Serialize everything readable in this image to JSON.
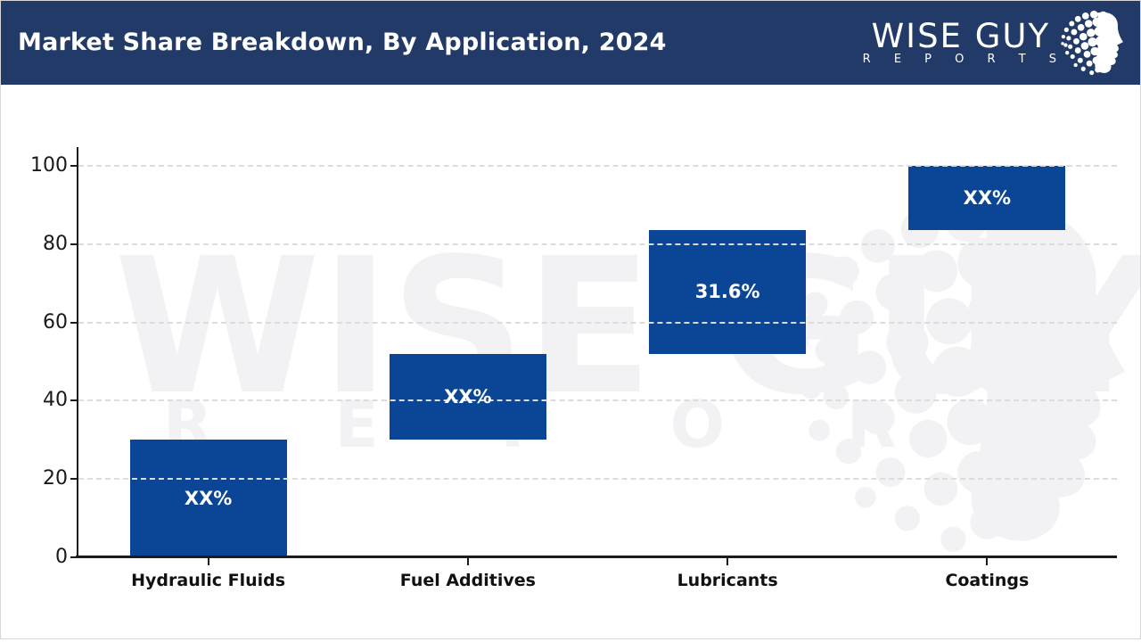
{
  "header": {
    "title": "Market Share Breakdown, By Application, 2024",
    "bg_color": "#213A68",
    "logo": {
      "wordmark": "WISE GUY",
      "subtext": "R E P O R T S"
    }
  },
  "watermark": {
    "wordmark": "WISE GUY",
    "subtext": "R E P O R T S"
  },
  "chart_data": {
    "type": "bar",
    "subtype": "floating-segment waterfall-style column chart",
    "title": "Market Share Breakdown, By Application, 2024",
    "categories": [
      "Hydraulic Fluids",
      "Fuel Additives",
      "Lubricants",
      "Coatings"
    ],
    "series": [
      {
        "name": "Market share segment",
        "segments": [
          {
            "category": "Hydraulic Fluids",
            "start": 0,
            "end": 30,
            "label": "XX%"
          },
          {
            "category": "Fuel Additives",
            "start": 30,
            "end": 52,
            "label": "XX%"
          },
          {
            "category": "Lubricants",
            "start": 52,
            "end": 83.6,
            "label": "31.6%"
          },
          {
            "category": "Coatings",
            "start": 83.6,
            "end": 100,
            "label": "XX%"
          }
        ]
      }
    ],
    "xlabel": "",
    "ylabel": "",
    "ylim": [
      0,
      100
    ],
    "yticks": [
      0,
      20,
      40,
      60,
      80,
      100
    ],
    "grid": "horizontal dashed, drawn over bars",
    "legend_position": "none",
    "bar_color": "#0B4596",
    "bar_label_color": "#FFFFFF",
    "axis_color": "#1B1B1B"
  }
}
